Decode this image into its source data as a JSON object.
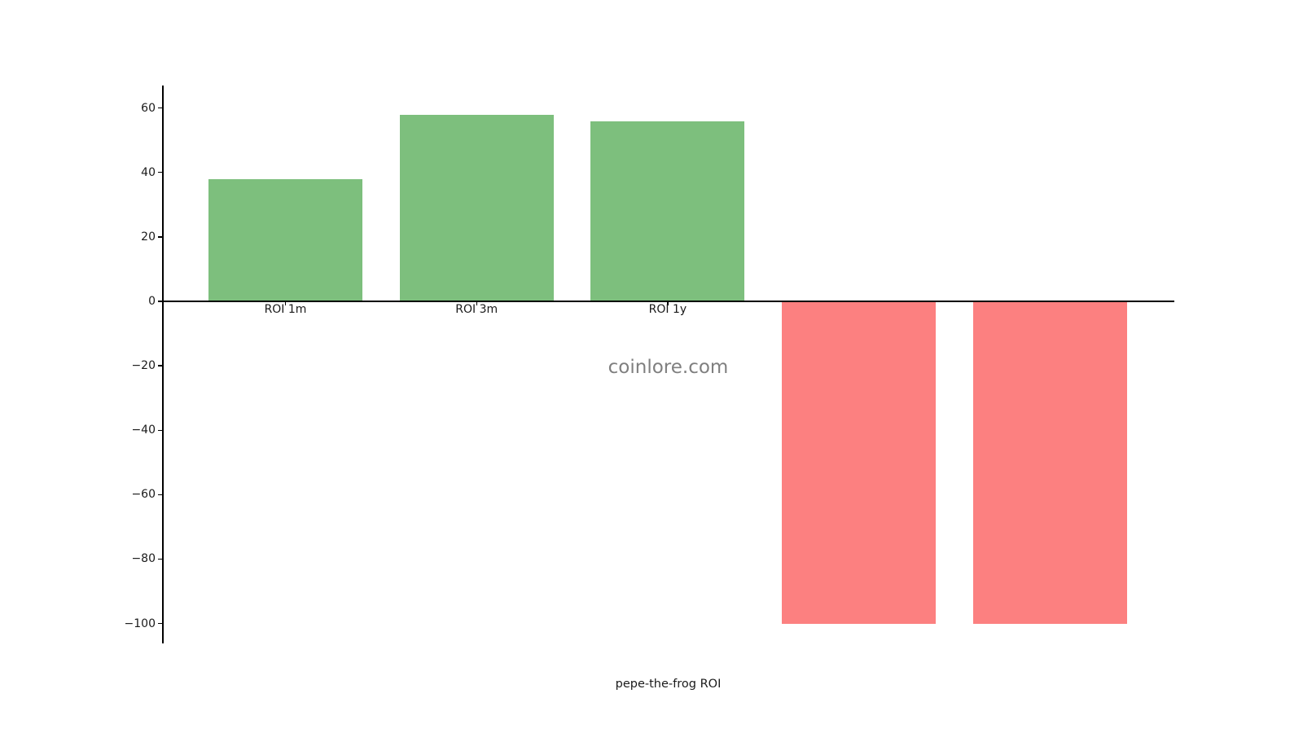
{
  "page": {
    "background": "#ffffff"
  },
  "watermark": {
    "text": "coinlore.com",
    "color": "#7f7f7f"
  },
  "chart_data": {
    "type": "bar",
    "title": "",
    "xlabel": "pepe-the-frog ROI",
    "ylabel": "",
    "categories": [
      "ROI 1m",
      "ROI 3m",
      "ROI 1y",
      "",
      ""
    ],
    "values": [
      38,
      58,
      56,
      -100,
      -100
    ],
    "positive_color": "#7dbf7d",
    "negative_color": "#fc8080",
    "axis_color": "#000000",
    "tick_label_color": "#1a1a1a",
    "yticks": [
      60,
      40,
      20,
      0,
      -20,
      -40,
      -60,
      -80,
      -100
    ],
    "ylim": [
      -106.2,
      67.0
    ],
    "grid": false,
    "legend": null,
    "annotations": [
      "coinlore.com"
    ]
  }
}
